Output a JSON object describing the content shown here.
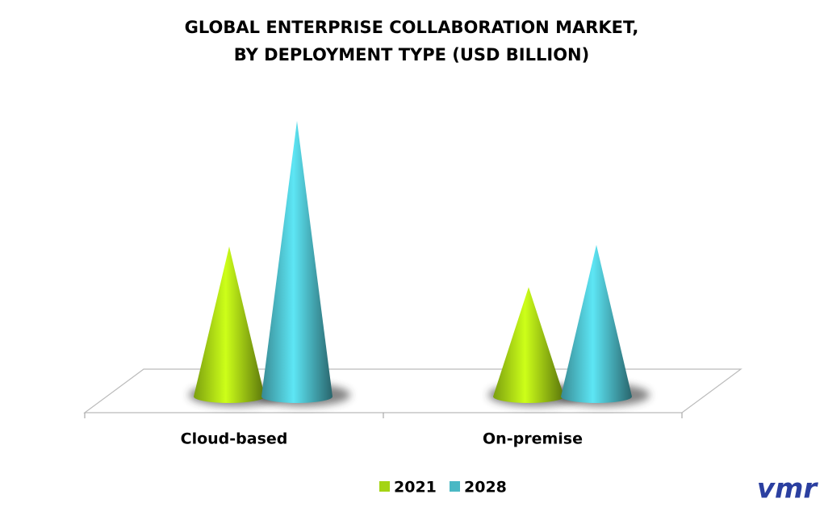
{
  "chart_data": {
    "type": "cone",
    "title": [
      "GLOBAL ENTERPRISE COLLABORATION MARKET,",
      "BY DEPLOYMENT TYPE (USD BILLION)"
    ],
    "categories": [
      "Cloud-based",
      "On-premise"
    ],
    "series": [
      {
        "name": "2021",
        "color": "#a4d414",
        "values": [
          18.5,
          13.5
        ]
      },
      {
        "name": "2028",
        "color": "#4ab8c4",
        "values": [
          34.0,
          18.7
        ]
      }
    ],
    "legend": "bottom",
    "logo": "vmr"
  }
}
